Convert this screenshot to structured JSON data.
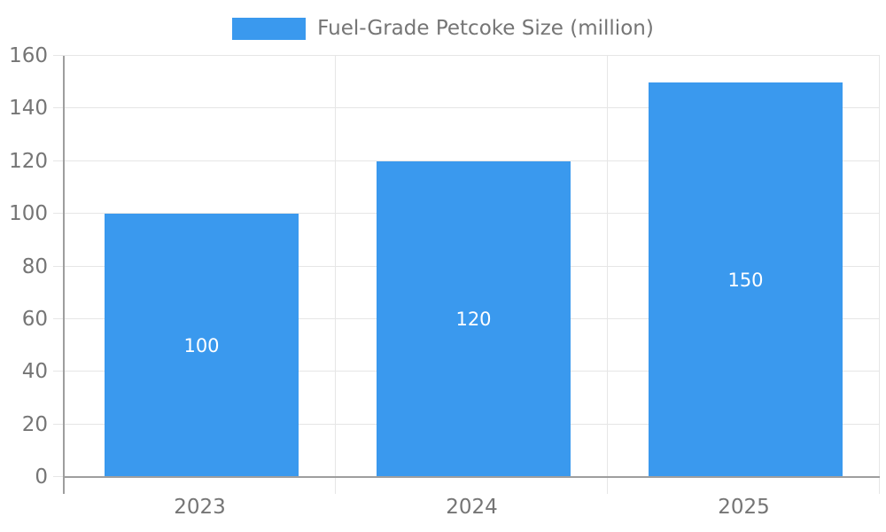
{
  "chart_data": {
    "type": "bar",
    "title": "Fuel-Grade Petcoke Size (million)",
    "categories": [
      "2023",
      "2024",
      "2025"
    ],
    "series": [
      {
        "name": "Fuel-Grade Petcoke Size (million)",
        "values": [
          100,
          120,
          150
        ]
      }
    ],
    "bar_value_labels": [
      "100",
      "120",
      "150"
    ],
    "xlabel": "",
    "ylabel": "",
    "ylim": [
      0,
      160
    ],
    "yticks": [
      0,
      20,
      40,
      60,
      80,
      100,
      120,
      140,
      160
    ],
    "grid": true,
    "legend_position": "top-center",
    "value_labels_inside_bars": true
  },
  "colors": {
    "bar": "#3a99ee",
    "grid_line": "#e6e6e6",
    "axis_line": "#9e9e9e",
    "tick_label": "#757575",
    "bar_value_label": "#ffffff",
    "background": "#ffffff"
  }
}
